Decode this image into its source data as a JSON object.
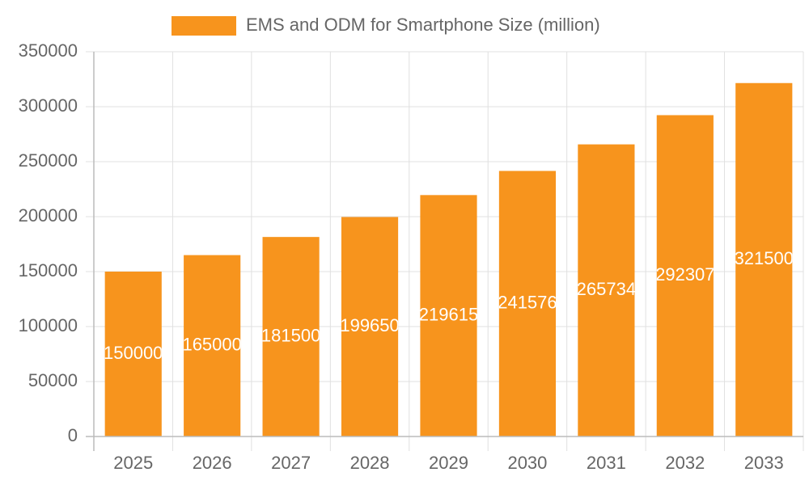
{
  "chart_data": {
    "type": "bar",
    "categories": [
      "2025",
      "2026",
      "2027",
      "2028",
      "2029",
      "2030",
      "2031",
      "2032",
      "2033"
    ],
    "series": [
      {
        "name": "EMS and ODM for Smartphone Size (million)",
        "color": "#f7941d",
        "values": [
          150000,
          165000,
          181500,
          199650,
          219615,
          241576,
          265734,
          292307,
          321500
        ]
      }
    ],
    "ylim": [
      0,
      350000
    ],
    "yticks": [
      0,
      50000,
      100000,
      150000,
      200000,
      250000,
      300000,
      350000
    ],
    "grid": true,
    "legend": "top"
  }
}
